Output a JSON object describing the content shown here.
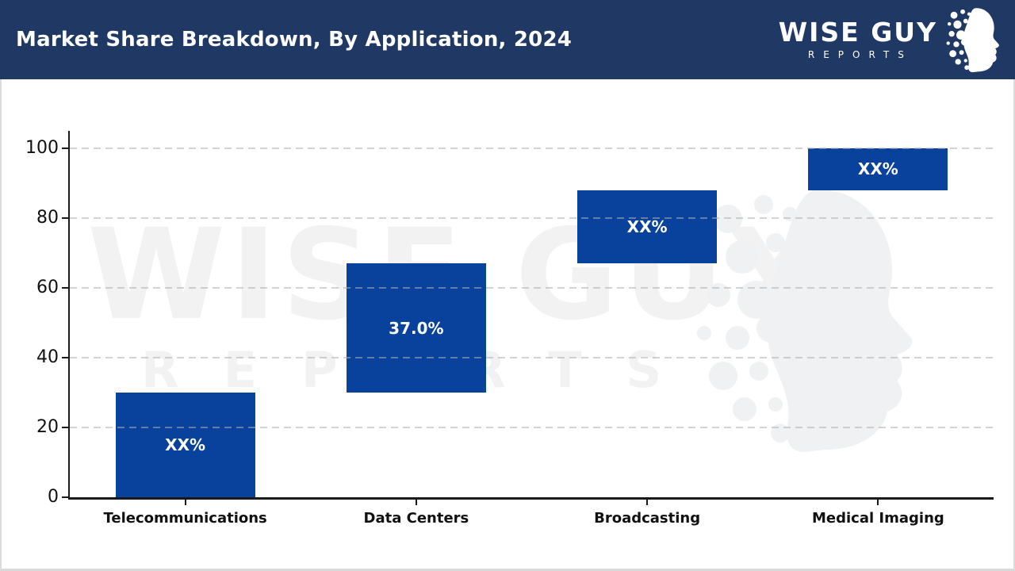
{
  "header": {
    "title": "Market Share Breakdown, By Application, 2024",
    "logo": {
      "line1": "WISE GUY",
      "line2": "REPORTS"
    }
  },
  "watermark": {
    "line1": "WISE GUY",
    "line2": "REPORTS"
  },
  "chart_data": {
    "type": "bar",
    "variant": "waterfall",
    "title": "Market Share Breakdown, By Application, 2024",
    "categories": [
      "Telecommunications",
      "Data Centers",
      "Broadcasting",
      "Medical Imaging"
    ],
    "starts": [
      0,
      30,
      67,
      88
    ],
    "values": [
      30,
      37,
      21,
      12
    ],
    "bar_labels": [
      "XX%",
      "37.0%",
      "XX%",
      "XX%"
    ],
    "xlabel": "",
    "ylabel": "",
    "ylim": [
      0,
      105
    ],
    "yticks": [
      0,
      20,
      40,
      60,
      80,
      100
    ],
    "grid": "horizontal-dashed",
    "legend": "none",
    "bar_color": "#08429c",
    "bar_label_color": "#ffffff"
  },
  "colors": {
    "header_bg": "#1f3864",
    "axis": "#1a1a1a",
    "gridline": "#d9d9d9",
    "watermark": "#f2f2f3",
    "frame_border": "#dcdcdc"
  }
}
